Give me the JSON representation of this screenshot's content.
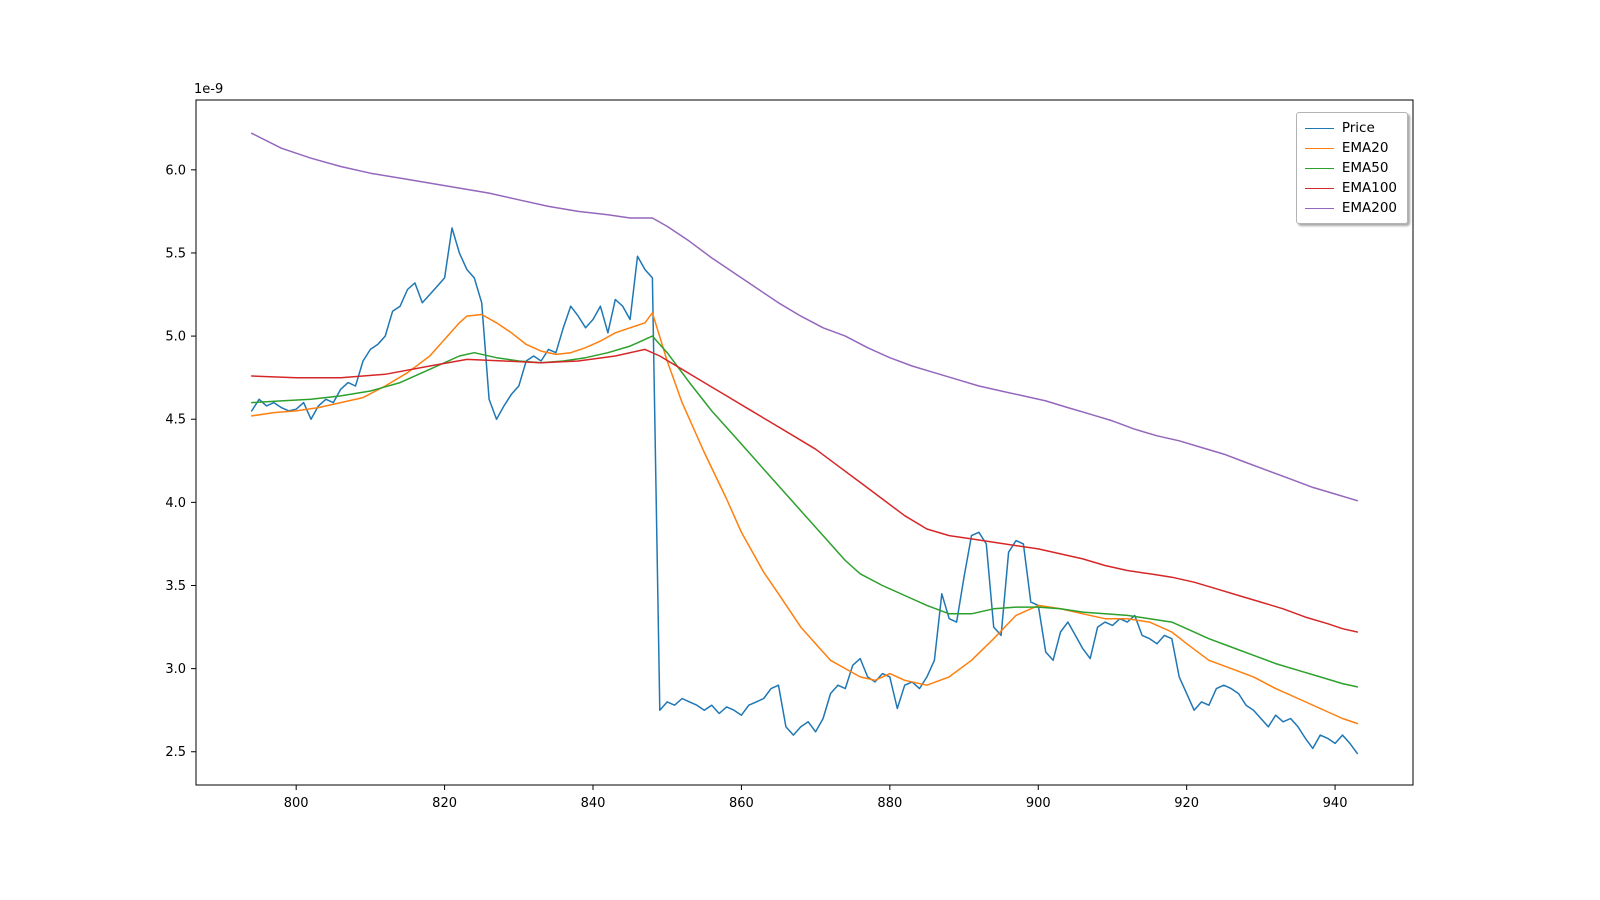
{
  "figure": {
    "background": "#ffffff"
  },
  "chart_data": {
    "type": "line",
    "title": "",
    "xlabel": "",
    "ylabel": "",
    "offset_label": "1e-9",
    "xlim": [
      786.5,
      950.5
    ],
    "ylim": [
      2.3,
      6.42
    ],
    "grid": false,
    "xtick_values": [
      800,
      820,
      840,
      860,
      880,
      900,
      920,
      940
    ],
    "xtick_labels": [
      "800",
      "820",
      "840",
      "860",
      "880",
      "900",
      "920",
      "940"
    ],
    "ytick_values": [
      2.5,
      3.0,
      3.5,
      4.0,
      4.5,
      5.0,
      5.5,
      6.0
    ],
    "ytick_labels": [
      "2.5",
      "3.0",
      "3.5",
      "4.0",
      "4.5",
      "5.0",
      "5.5",
      "6.0"
    ],
    "legend": {
      "position": "upper right",
      "entries": [
        "Price",
        "EMA20",
        "EMA50",
        "EMA100",
        "EMA200"
      ]
    },
    "series": [
      {
        "name": "Price",
        "color": "#1f77b4",
        "x_start": 794,
        "x_step": 1,
        "y": [
          4.55,
          4.62,
          4.58,
          4.6,
          4.57,
          4.55,
          4.56,
          4.6,
          4.5,
          4.58,
          4.62,
          4.6,
          4.68,
          4.72,
          4.7,
          4.85,
          4.92,
          4.95,
          5.0,
          5.15,
          5.18,
          5.28,
          5.32,
          5.2,
          5.25,
          5.3,
          5.35,
          5.65,
          5.5,
          5.4,
          5.35,
          5.2,
          4.62,
          4.5,
          4.58,
          4.65,
          4.7,
          4.85,
          4.88,
          4.85,
          4.92,
          4.9,
          5.05,
          5.18,
          5.12,
          5.05,
          5.1,
          5.18,
          5.02,
          5.22,
          5.18,
          5.1,
          5.48,
          5.4,
          5.35,
          2.75,
          2.8,
          2.78,
          2.82,
          2.8,
          2.78,
          2.75,
          2.78,
          2.73,
          2.77,
          2.75,
          2.72,
          2.78,
          2.8,
          2.82,
          2.88,
          2.9,
          2.65,
          2.6,
          2.65,
          2.68,
          2.62,
          2.7,
          2.85,
          2.9,
          2.88,
          3.02,
          3.06,
          2.95,
          2.92,
          2.97,
          2.95,
          2.76,
          2.9,
          2.92,
          2.88,
          2.95,
          3.05,
          3.45,
          3.3,
          3.28,
          3.55,
          3.8,
          3.82,
          3.75,
          3.25,
          3.2,
          3.7,
          3.77,
          3.75,
          3.4,
          3.38,
          3.1,
          3.05,
          3.22,
          3.28,
          3.2,
          3.12,
          3.06,
          3.25,
          3.28,
          3.26,
          3.3,
          3.28,
          3.32,
          3.2,
          3.18,
          3.15,
          3.2,
          3.18,
          2.95,
          2.85,
          2.75,
          2.8,
          2.78,
          2.88,
          2.9,
          2.88,
          2.85,
          2.78,
          2.75,
          2.7,
          2.65,
          2.72,
          2.68,
          2.7,
          2.65,
          2.58,
          2.52,
          2.6,
          2.58,
          2.55,
          2.6,
          2.55,
          2.49
        ]
      },
      {
        "name": "EMA20",
        "color": "#ff7f0e",
        "x": [
          794,
          797,
          800,
          803,
          806,
          809,
          812,
          815,
          818,
          820,
          822,
          823,
          825,
          827,
          829,
          831,
          833,
          835,
          837,
          839,
          841,
          843,
          845,
          847,
          848,
          850,
          852,
          855,
          858,
          860,
          863,
          865,
          868,
          870,
          872,
          874,
          876,
          878,
          880,
          882,
          885,
          888,
          891,
          894,
          897,
          900,
          903,
          906,
          909,
          912,
          915,
          918,
          920,
          923,
          926,
          929,
          932,
          935,
          938,
          941,
          943
        ],
        "y": [
          4.52,
          4.54,
          4.55,
          4.57,
          4.6,
          4.63,
          4.7,
          4.78,
          4.88,
          4.98,
          5.08,
          5.12,
          5.13,
          5.08,
          5.02,
          4.95,
          4.91,
          4.89,
          4.9,
          4.93,
          4.97,
          5.02,
          5.05,
          5.08,
          5.14,
          4.85,
          4.6,
          4.3,
          4.02,
          3.82,
          3.58,
          3.45,
          3.25,
          3.15,
          3.05,
          3.0,
          2.95,
          2.93,
          2.97,
          2.93,
          2.9,
          2.95,
          3.05,
          3.18,
          3.32,
          3.38,
          3.36,
          3.33,
          3.3,
          3.3,
          3.28,
          3.22,
          3.15,
          3.05,
          3.0,
          2.95,
          2.88,
          2.82,
          2.76,
          2.7,
          2.67
        ]
      },
      {
        "name": "EMA50",
        "color": "#2ca02c",
        "x": [
          794,
          798,
          802,
          806,
          810,
          814,
          818,
          822,
          824,
          827,
          830,
          833,
          836,
          839,
          842,
          845,
          848,
          850,
          853,
          856,
          859,
          862,
          865,
          868,
          871,
          874,
          876,
          879,
          882,
          885,
          888,
          891,
          894,
          897,
          900,
          903,
          906,
          909,
          912,
          915,
          918,
          920,
          923,
          926,
          929,
          932,
          935,
          938,
          941,
          943
        ],
        "y": [
          4.6,
          4.61,
          4.62,
          4.64,
          4.67,
          4.72,
          4.8,
          4.88,
          4.9,
          4.87,
          4.85,
          4.84,
          4.85,
          4.87,
          4.9,
          4.94,
          5.0,
          4.9,
          4.72,
          4.55,
          4.4,
          4.25,
          4.1,
          3.95,
          3.8,
          3.65,
          3.57,
          3.5,
          3.44,
          3.38,
          3.33,
          3.33,
          3.36,
          3.37,
          3.37,
          3.36,
          3.34,
          3.33,
          3.32,
          3.3,
          3.28,
          3.24,
          3.18,
          3.13,
          3.08,
          3.03,
          2.99,
          2.95,
          2.91,
          2.89
        ]
      },
      {
        "name": "EMA100",
        "color": "#d62728",
        "x": [
          794,
          800,
          806,
          812,
          818,
          823,
          828,
          833,
          838,
          843,
          847,
          849,
          852,
          855,
          858,
          861,
          864,
          867,
          870,
          873,
          876,
          879,
          882,
          885,
          888,
          891,
          894,
          897,
          900,
          903,
          906,
          909,
          912,
          915,
          918,
          921,
          924,
          927,
          930,
          933,
          936,
          939,
          941,
          943
        ],
        "y": [
          4.76,
          4.75,
          4.75,
          4.77,
          4.82,
          4.86,
          4.85,
          4.84,
          4.85,
          4.88,
          4.92,
          4.88,
          4.8,
          4.72,
          4.64,
          4.56,
          4.48,
          4.4,
          4.32,
          4.22,
          4.12,
          4.02,
          3.92,
          3.84,
          3.8,
          3.78,
          3.76,
          3.74,
          3.72,
          3.69,
          3.66,
          3.62,
          3.59,
          3.57,
          3.55,
          3.52,
          3.48,
          3.44,
          3.4,
          3.36,
          3.31,
          3.27,
          3.24,
          3.22
        ]
      },
      {
        "name": "EMA200",
        "color": "#9467bd",
        "x": [
          794,
          798,
          802,
          806,
          810,
          814,
          818,
          822,
          826,
          830,
          834,
          838,
          842,
          845,
          848,
          850,
          853,
          856,
          859,
          862,
          865,
          868,
          871,
          874,
          877,
          880,
          883,
          886,
          889,
          892,
          895,
          898,
          901,
          904,
          907,
          910,
          913,
          916,
          919,
          922,
          925,
          928,
          931,
          934,
          937,
          940,
          943
        ],
        "y": [
          6.22,
          6.13,
          6.07,
          6.02,
          5.98,
          5.95,
          5.92,
          5.89,
          5.86,
          5.82,
          5.78,
          5.75,
          5.73,
          5.71,
          5.71,
          5.66,
          5.57,
          5.47,
          5.38,
          5.29,
          5.2,
          5.12,
          5.05,
          5.0,
          4.93,
          4.87,
          4.82,
          4.78,
          4.74,
          4.7,
          4.67,
          4.64,
          4.61,
          4.57,
          4.53,
          4.49,
          4.44,
          4.4,
          4.37,
          4.33,
          4.29,
          4.24,
          4.19,
          4.14,
          4.09,
          4.05,
          4.01
        ]
      }
    ]
  }
}
